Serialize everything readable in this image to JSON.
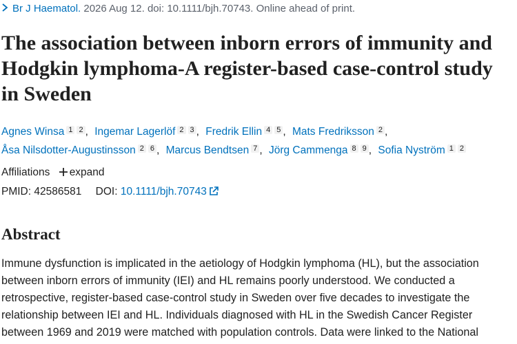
{
  "citation": {
    "journal": "Br J Haematol.",
    "details": "2026 Aug 12. doi: 10.1111/bjh.70743. Online ahead of print."
  },
  "title": "The association between inborn errors of immunity and Hodgkin lymphoma-A register-based case-control study in Sweden",
  "authors": [
    {
      "name": "Agnes Winsa",
      "affiliations": [
        "1",
        "2"
      ]
    },
    {
      "name": "Ingemar Lagerlöf",
      "affiliations": [
        "2",
        "3"
      ]
    },
    {
      "name": "Fredrik Ellin",
      "affiliations": [
        "4",
        "5"
      ]
    },
    {
      "name": "Mats Fredriksson",
      "affiliations": [
        "2"
      ]
    },
    {
      "name": "Åsa Nilsdotter-Augustinsson",
      "affiliations": [
        "2",
        "6"
      ]
    },
    {
      "name": "Marcus Bendtsen",
      "affiliations": [
        "7"
      ]
    },
    {
      "name": "Jörg Cammenga",
      "affiliations": [
        "8",
        "9"
      ]
    },
    {
      "name": "Sofia Nyström",
      "affiliations": [
        "1",
        "2"
      ]
    }
  ],
  "affiliations": {
    "label": "Affiliations",
    "toggle": "expand"
  },
  "identifiers": {
    "pmid_label": "PMID:",
    "pmid": "42586581",
    "doi_label": "DOI:",
    "doi": "10.1111/bjh.70743"
  },
  "abstract": {
    "heading": "Abstract",
    "text": "Immune dysfunction is implicated in the aetiology of Hodgkin lymphoma (HL), but the association between inborn errors of immunity (IEI) and HL remains poorly understood. We conducted a retrospective, register-based case-control study in Sweden over five decades to investigate the relationship between IEI and HL. Individuals diagnosed with HL in the Swedish Cancer Register between 1969 and 2019 were matched with population controls. Data were linked to the National"
  }
}
